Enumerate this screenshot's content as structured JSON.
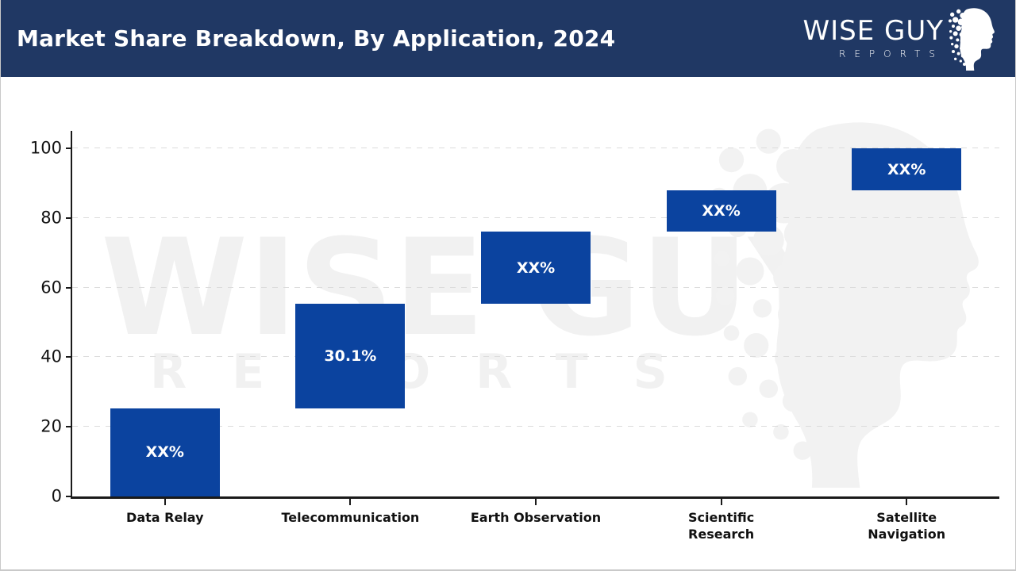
{
  "header": {
    "title": "Market Share Breakdown, By Application, 2024",
    "background": "#203864",
    "logo": {
      "wordmark": "WISE GUY",
      "subtext": "REPORTS"
    }
  },
  "watermark": {
    "wordmark": "WISE GUY",
    "subtext": "REPORTS"
  },
  "chart_data": {
    "type": "bar",
    "subtype": "waterfall",
    "title": "Market Share Breakdown, By Application, 2024",
    "categories": [
      "Data Relay",
      "Telecommunication",
      "Earth Observation",
      "Scientific\nResearch",
      "Satellite\nNavigation"
    ],
    "segments": [
      {
        "category": "Data Relay",
        "start": 0,
        "end": 25.3,
        "value_label": "XX%"
      },
      {
        "category": "Telecommunication",
        "start": 25.3,
        "end": 55.4,
        "value_label": "30.1%"
      },
      {
        "category": "Earth Observation",
        "start": 55.4,
        "end": 76.0,
        "value_label": "XX%"
      },
      {
        "category": "Scientific Research",
        "start": 76.0,
        "end": 87.9,
        "value_label": "XX%"
      },
      {
        "category": "Satellite Navigation",
        "start": 87.9,
        "end": 100.0,
        "value_label": "XX%"
      }
    ],
    "yticks": [
      0,
      20,
      40,
      60,
      80,
      100
    ],
    "ylim": [
      0,
      105
    ],
    "xlabel": "",
    "ylabel": "",
    "grid": "horizontal-dashed",
    "legend": "none",
    "bar_color": "#0b439f",
    "bar_label_color": "#ffffff"
  }
}
